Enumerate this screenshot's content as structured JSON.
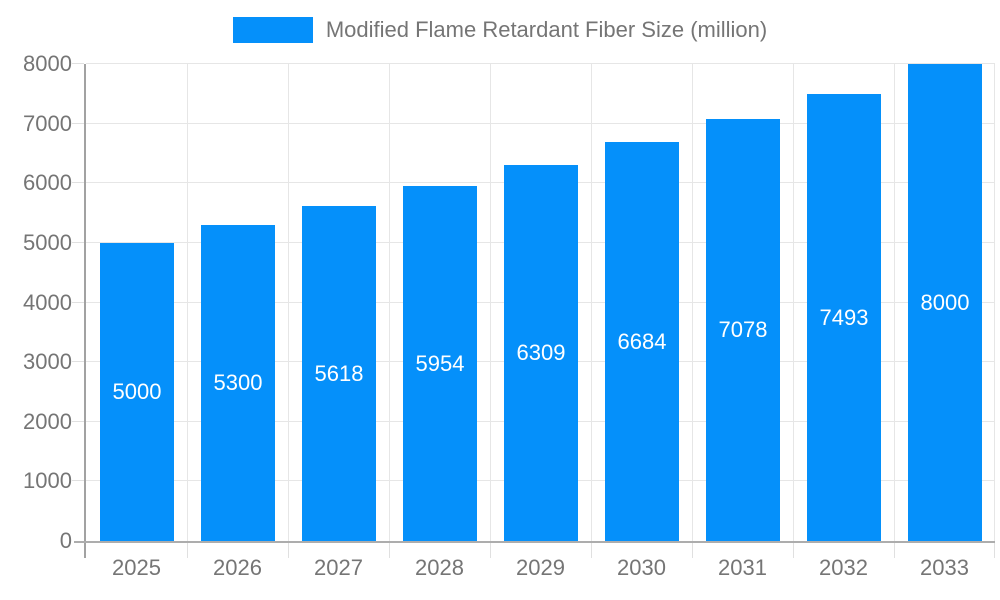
{
  "legend": {
    "label": "Modified Flame Retardant Fiber Size (million)",
    "swatch_color": "#0590fa"
  },
  "chart_data": {
    "type": "bar",
    "title": "Modified Flame Retardant Fiber Size (million)",
    "categories": [
      "2025",
      "2026",
      "2027",
      "2028",
      "2029",
      "2030",
      "2031",
      "2032",
      "2033"
    ],
    "series": [
      {
        "name": "Modified Flame Retardant Fiber Size (million)",
        "values": [
          5000,
          5300,
          5618,
          5954,
          6309,
          6684,
          7078,
          7493,
          8000
        ]
      }
    ],
    "value_labels": [
      5000,
      5300,
      5618,
      5954,
      6309,
      6684,
      7078,
      7493,
      8000
    ],
    "xlabel": "",
    "ylabel": "",
    "ylim": [
      0,
      8000
    ],
    "ytick_step": 1000,
    "yticks": [
      0,
      1000,
      2000,
      3000,
      4000,
      5000,
      6000,
      7000,
      8000
    ],
    "grid": true,
    "legend_position": "top-center",
    "value_label_position": "inside-center",
    "colors": {
      "bar": "#0590fa",
      "value_label_text": "#ffffff",
      "axis_text": "#757575",
      "axis_line": "#a2a2a2",
      "gridline": "#e6e6e6",
      "background": "#ffffff"
    }
  }
}
